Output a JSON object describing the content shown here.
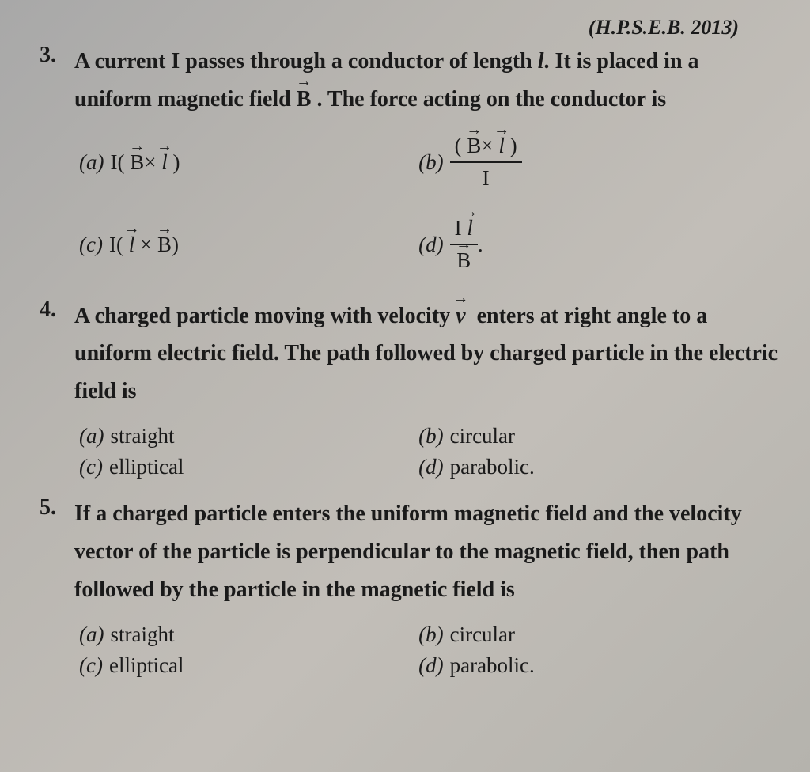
{
  "citation": "(H.P.S.E.B. 2013)",
  "q3": {
    "num": "3.",
    "text_part1": "A current I passes through a conductor of length ",
    "text_l": "l",
    "text_part2": ". It is placed in a uniform magnetic field ",
    "text_B": "B",
    "text_part3": " . The force acting on the conductor is",
    "opt_a_label": "(a)",
    "opt_a_I": "I( ",
    "opt_a_B": "B",
    "opt_a_times": "× ",
    "opt_a_l": "l",
    "opt_a_close": " )",
    "opt_b_label": "(b)",
    "opt_b_open": "( ",
    "opt_b_B": "B",
    "opt_b_times": "× ",
    "opt_b_l": "l",
    "opt_b_close": " )",
    "opt_b_den": "I",
    "opt_c_label": "(c)",
    "opt_c_I": "I( ",
    "opt_c_l": "l",
    "opt_c_times": " × ",
    "opt_c_B": "B",
    "opt_c_close": ")",
    "opt_d_label": "(d)",
    "opt_d_I": "I ",
    "opt_d_l": "l",
    "opt_d_B": "B",
    "opt_d_period": " ."
  },
  "q4": {
    "num": "4.",
    "text_part1": "A charged particle moving with velocity ",
    "text_v": "v",
    "text_part2": " enters at right angle to a uniform electric field. The path followed by charged particle in the electric field is",
    "opt_a_label": "(a)",
    "opt_a_text": "straight",
    "opt_b_label": "(b)",
    "opt_b_text": "circular",
    "opt_c_label": "(c)",
    "opt_c_text": "elliptical",
    "opt_d_label": "(d)",
    "opt_d_text": "parabolic."
  },
  "q5": {
    "num": "5.",
    "text": "If a charged particle enters the uniform magnetic field and the velocity vector of the particle is perpendicular to the magnetic field, then path followed by the particle in the magnetic field is",
    "opt_a_label": "(a)",
    "opt_a_text": "straight",
    "opt_b_label": "(b)",
    "opt_b_text": "circular",
    "opt_c_label": "(c)",
    "opt_c_text": "elliptical",
    "opt_d_label": "(d)",
    "opt_d_text": "parabolic."
  }
}
